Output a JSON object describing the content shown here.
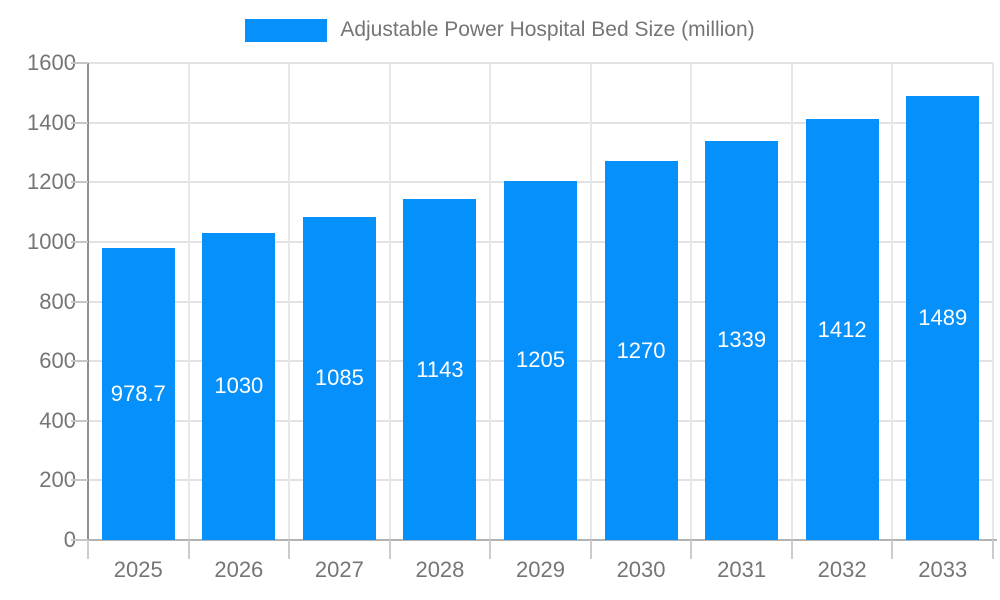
{
  "legend": {
    "label": "Adjustable Power Hospital Bed Size (million)"
  },
  "chart_data": {
    "type": "bar",
    "title": "Adjustable Power Hospital Bed Size (million)",
    "categories": [
      "2025",
      "2026",
      "2027",
      "2028",
      "2029",
      "2030",
      "2031",
      "2032",
      "2033"
    ],
    "values": [
      978.7,
      1030,
      1085,
      1143,
      1205,
      1270,
      1339,
      1412,
      1489
    ],
    "bar_labels": [
      "978.7",
      "1030",
      "1085",
      "1143",
      "1205",
      "1270",
      "1339",
      "1412",
      "1489"
    ],
    "xlabel": "",
    "ylabel": "",
    "ylim": [
      0,
      1600
    ],
    "yticks": [
      0,
      200,
      400,
      600,
      800,
      1000,
      1200,
      1400,
      1600
    ],
    "grid": true,
    "legend_position": "top-center",
    "colors": {
      "bar": "#0590FC",
      "bar_label_text": "#ffffff",
      "axis_text": "#757575",
      "legend_text": "#757575",
      "gridline": "#e2e2e2",
      "axis_line": "#8f8f8f",
      "baseline": "#b3b3b3",
      "tick": "#c6c6c6",
      "background": "#ffffff"
    }
  }
}
